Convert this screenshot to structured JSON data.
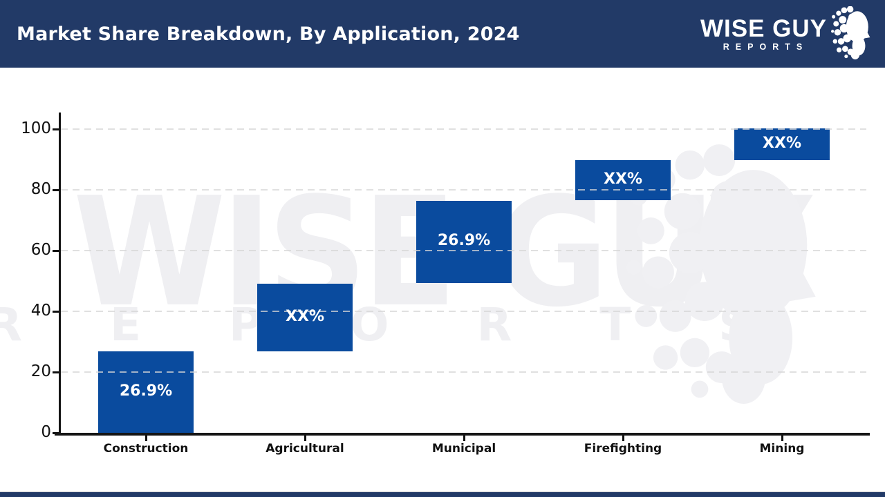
{
  "header": {
    "title": "Market Share Breakdown, By Application, 2024",
    "logo": {
      "line1": "WISE GUY",
      "line2": "REPORTS"
    }
  },
  "watermark": {
    "line1": "WISE GUY",
    "line2": "REPORTS"
  },
  "colors": {
    "header_bg": "#223a67",
    "footer_bg": "#223a67",
    "bar": "#0a4b9e",
    "grid": "#d6d6d6",
    "axis": "#151515",
    "bar_label": "#ffffff",
    "watermark": "#efeff2"
  },
  "chart_data": {
    "type": "bar",
    "subtype": "waterfall",
    "title": "Market Share Breakdown, By Application, 2024",
    "categories": [
      "Construction",
      "Agricultural",
      "Municipal",
      "Firefighting",
      "Mining"
    ],
    "segments": [
      {
        "category": "Construction",
        "start": 0,
        "end": 26.9,
        "label": "26.9%"
      },
      {
        "category": "Agricultural",
        "start": 26.9,
        "end": 49.2,
        "label": "XX%"
      },
      {
        "category": "Municipal",
        "start": 49.4,
        "end": 76.3,
        "label": "26.9%"
      },
      {
        "category": "Firefighting",
        "start": 76.6,
        "end": 89.8,
        "label": "XX%"
      },
      {
        "category": "Mining",
        "start": 89.8,
        "end": 100.2,
        "label": "XX%"
      }
    ],
    "yticks": [
      0,
      20,
      40,
      60,
      80,
      100
    ],
    "ylim": [
      0,
      105
    ],
    "xlabel": "",
    "ylabel": "",
    "grid": "horizontal-dashed",
    "legend": "none"
  }
}
